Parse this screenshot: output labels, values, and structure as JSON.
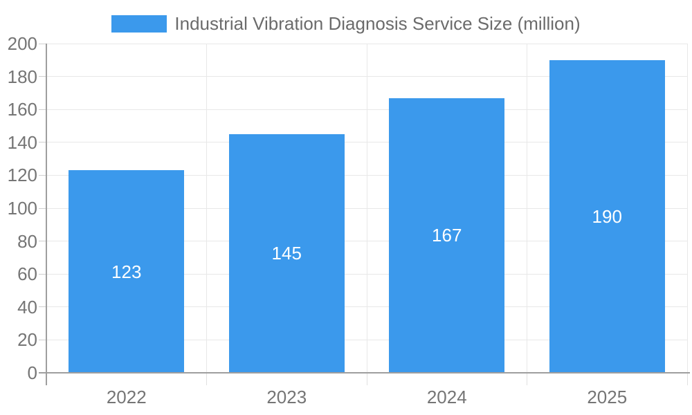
{
  "chart_data": {
    "type": "bar",
    "title": "Industrial Vibration Diagnosis Service Size (million)",
    "legend": [
      "Industrial Vibration Diagnosis Service Size (million)"
    ],
    "legend_position": "top",
    "categories": [
      "2022",
      "2023",
      "2024",
      "2025"
    ],
    "values": [
      123,
      145,
      167,
      190
    ],
    "value_labels": [
      "123",
      "145",
      "167",
      "190"
    ],
    "xlabel": "",
    "ylabel": "",
    "ylim": [
      0,
      200
    ],
    "ytick_step": 20,
    "ytick_labels": [
      "0",
      "20",
      "40",
      "60",
      "80",
      "100",
      "120",
      "140",
      "160",
      "180",
      "200"
    ],
    "grid": "on",
    "colors": {
      "bar": "#3B99EC",
      "value_label": "#FFFFFF",
      "gridline": "#E8E8E8",
      "axis_line": "#9E9E9E",
      "y_tick": "#CFCFCF",
      "x_tick": "#E0E0E0",
      "axis_text": "#757575",
      "legend_text": "#6B6B6B"
    }
  }
}
